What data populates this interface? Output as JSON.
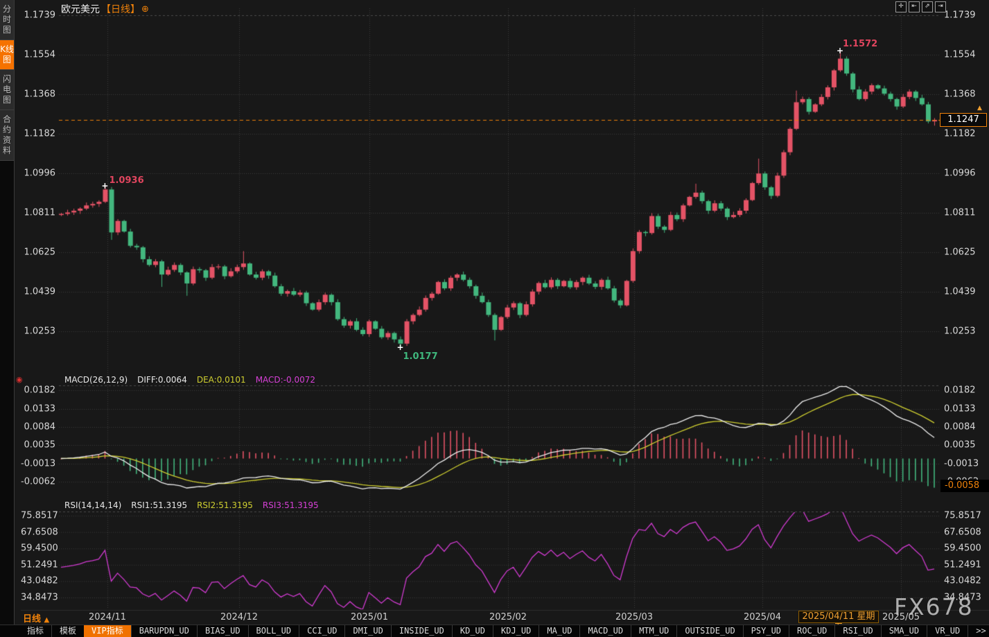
{
  "app": {
    "watermark": "FX678"
  },
  "header": {
    "symbol": "欧元美元",
    "period": "【日线】",
    "target_icon": "⊕"
  },
  "topbar_icons": [
    {
      "key": "crosshair-tool-icon",
      "glyph": "✛"
    },
    {
      "key": "x-axis-scale-icon",
      "glyph": "⇤"
    },
    {
      "key": "y-axis-scale-icon",
      "glyph": "⇗"
    },
    {
      "key": "pan-right-icon",
      "glyph": "⇥"
    }
  ],
  "sidebar": {
    "items": [
      {
        "key": "timeshare",
        "label": "分时图",
        "active": false
      },
      {
        "key": "kline",
        "label": "K线图",
        "active": true
      },
      {
        "key": "lightning",
        "label": "闪电图",
        "active": false
      },
      {
        "key": "contract-info",
        "label": "合约资料",
        "active": false
      }
    ]
  },
  "main_chart": {
    "y_ticks": [
      "1.1739",
      "1.1554",
      "1.1368",
      "1.1182",
      "1.0996",
      "1.0811",
      "1.0625",
      "1.0439",
      "1.0253"
    ],
    "current_price": "1.1247",
    "annotation_high": "1.1572",
    "annotation_low": "1.0177",
    "annotation_local_high": "1.0936",
    "crosshair_date": "2025/04/11 星期五",
    "period_label": "日线",
    "period_arrow": "▲",
    "alert_icon": "▲"
  },
  "macd_panel": {
    "header": {
      "name": "MACD(26,12,9)",
      "diff": "DIFF:0.0064",
      "dea": "DEA:0.0101",
      "macd": "MACD:-0.0072"
    },
    "y_ticks": [
      "0.0182",
      "0.0133",
      "0.0084",
      "0.0035",
      "-0.0013",
      "-0.0062"
    ],
    "current_value": "-0.0058",
    "settings_icon": "◉"
  },
  "rsi_panel": {
    "header": {
      "name": "RSI(14,14,14)",
      "rsi1": "RSI1:51.3195",
      "rsi2": "RSI2:51.3195",
      "rsi3": "RSI3:51.3195"
    },
    "y_ticks": [
      "75.8517",
      "67.6508",
      "59.4500",
      "51.2491",
      "43.0482",
      "34.8473"
    ]
  },
  "toolbar": {
    "items": [
      "指标",
      "模板",
      "VIP指标",
      "BARUPDN_UD",
      "BIAS_UD",
      "BOLL_UD",
      "CCI_UD",
      "DMI_UD",
      "INSIDE_UD",
      "KD_UD",
      "KDJ_UD",
      "MA_UD",
      "MACD_UD",
      "MTM_UD",
      "OUTSIDE_UD",
      "PSY_UD",
      "ROC_UD",
      "RSI_UD",
      "SMA_UD",
      "VR_UD",
      ">>"
    ],
    "active_item": "VIP指标"
  },
  "colors": {
    "up": "#e45366",
    "down": "#43b77e",
    "accent": "#f0820a",
    "diff_line": "#f0f0f0",
    "dea_line": "#cfcf30",
    "macd_text": "#d640d6",
    "rsi_line": "#d23bd2",
    "grid": "#3c3c3c",
    "grid_bright": "#4a4a4a",
    "axis_text": "#d8d8d8",
    "background": "#181818"
  },
  "chart_data": {
    "type": "candlestick+indicators",
    "title": "欧元美元 (EUR/USD) 日线 with MACD(26,12,9) and RSI(14,14,14)",
    "x_axis_months": [
      "2024/11",
      "2024/12",
      "2025/01",
      "2025/02",
      "2025/03",
      "2025/04",
      "2025/05"
    ],
    "price_axis_ticks": [
      1.1739,
      1.1554,
      1.1368,
      1.1182,
      1.0996,
      1.0811,
      1.0625,
      1.0439,
      1.0253
    ],
    "macd_axis_ticks": [
      0.0182,
      0.0133,
      0.0084,
      0.0035,
      -0.0013,
      -0.0062
    ],
    "rsi_axis_ticks": [
      75.8517,
      67.6508,
      59.45,
      51.2491,
      43.0482,
      34.8473
    ],
    "indicator_params": {
      "macd": [
        26,
        12,
        9
      ],
      "rsi": [
        14,
        14,
        14
      ]
    },
    "readouts": {
      "diff": 0.0064,
      "dea": 0.0101,
      "macd": -0.0072,
      "macd_last_bar": -0.0058,
      "rsi1": 51.3195,
      "rsi2": 51.3195,
      "rsi3": 51.3195,
      "current_price": 1.1247,
      "period_high": 1.1572,
      "period_low": 1.0177,
      "nov_high": 1.0936,
      "crosshair_date": "2025/04/11 星期五"
    },
    "annotated_points": {
      "local_high_index": 7,
      "low_index": 54,
      "high_index": 124
    },
    "closes": [
      1.0805,
      1.0812,
      1.082,
      1.083,
      1.0845,
      1.0852,
      1.0862,
      1.092,
      1.0718,
      1.0772,
      1.0722,
      1.0655,
      1.0648,
      1.0592,
      1.0565,
      1.0582,
      1.052,
      1.0542,
      1.0565,
      1.053,
      1.0478,
      1.0545,
      1.054,
      1.0505,
      1.0555,
      1.0558,
      1.0512,
      1.0535,
      1.0555,
      1.0572,
      1.052,
      1.0505,
      1.0535,
      1.0515,
      1.0465,
      1.043,
      1.0442,
      1.0425,
      1.0435,
      1.0385,
      1.0355,
      1.039,
      1.0425,
      1.039,
      1.031,
      1.028,
      1.03,
      1.026,
      1.024,
      1.03,
      1.0265,
      1.0225,
      1.0245,
      1.0215,
      1.0195,
      1.03,
      1.033,
      1.0355,
      1.041,
      1.043,
      1.0485,
      1.0455,
      1.0505,
      1.052,
      1.0495,
      1.0465,
      1.042,
      1.039,
      1.033,
      1.026,
      1.032,
      1.0365,
      1.0385,
      1.033,
      1.038,
      1.044,
      1.048,
      1.046,
      1.0495,
      1.0465,
      1.049,
      1.046,
      1.0485,
      1.0505,
      1.0478,
      1.0462,
      1.0495,
      1.0455,
      1.0398,
      1.0375,
      1.049,
      1.063,
      1.072,
      1.0715,
      1.0795,
      1.0745,
      1.073,
      1.08,
      1.078,
      1.0845,
      1.0885,
      1.0905,
      1.0865,
      1.082,
      1.0855,
      1.083,
      1.079,
      1.08,
      1.082,
      1.087,
      1.095,
      1.0995,
      1.093,
      1.089,
      1.0985,
      1.1095,
      1.1205,
      1.133,
      1.1345,
      1.1285,
      1.132,
      1.1355,
      1.14,
      1.148,
      1.1535,
      1.1465,
      1.139,
      1.1345,
      1.138,
      1.141,
      1.1395,
      1.137,
      1.1345,
      1.131,
      1.1355,
      1.138,
      1.135,
      1.132,
      1.124,
      1.1247
    ],
    "open_rule": "open[i] = close[i-1], open[0] = 1.0800",
    "wick_default": 0.0013,
    "wick_overrides": {
      "7": {
        "h": 1.0936
      },
      "8": {
        "l": 1.0683
      },
      "16": {
        "l": 1.0462
      },
      "20": {
        "l": 1.042
      },
      "29": {
        "h": 1.063
      },
      "54": {
        "l": 1.0177
      },
      "69": {
        "l": 1.021
      },
      "101": {
        "h": 1.0947
      },
      "111": {
        "h": 1.1065
      },
      "117": {
        "h": 1.1385
      },
      "124": {
        "h": 1.1572
      },
      "139": {
        "l": 1.122
      }
    }
  }
}
